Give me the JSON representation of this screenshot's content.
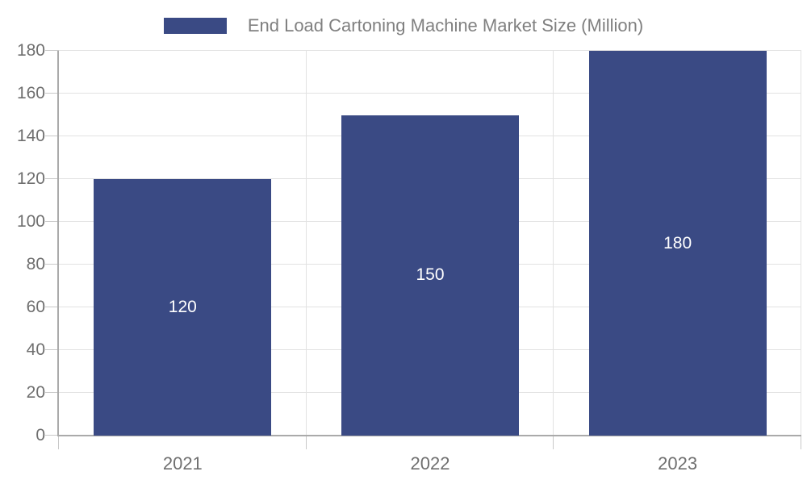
{
  "legend": {
    "label": "End Load Cartoning Machine Market Size (Million)",
    "position": "top-center"
  },
  "chart_data": {
    "type": "bar",
    "title": "End Load Cartoning Machine Market Size (Million)",
    "categories": [
      "2021",
      "2022",
      "2023"
    ],
    "values": [
      120,
      150,
      180
    ],
    "bar_labels": [
      "120",
      "150",
      "180"
    ],
    "xlabel": "",
    "ylabel": "",
    "ylim": [
      0,
      180
    ],
    "ytick_step": 20,
    "yticks": [
      0,
      20,
      40,
      60,
      80,
      100,
      120,
      140,
      160,
      180
    ],
    "grid": true,
    "legend_position": "top-center"
  },
  "colors": {
    "bar": "#3A4A84",
    "bar_label_text": "#ffffff",
    "axis_line": "#aaaaaa",
    "grid_line": "#e2e2e2",
    "tick_line": "#c8c8c8",
    "axis_label_text": "#6f6f6f",
    "legend_text": "#808080",
    "background": "#ffffff"
  }
}
